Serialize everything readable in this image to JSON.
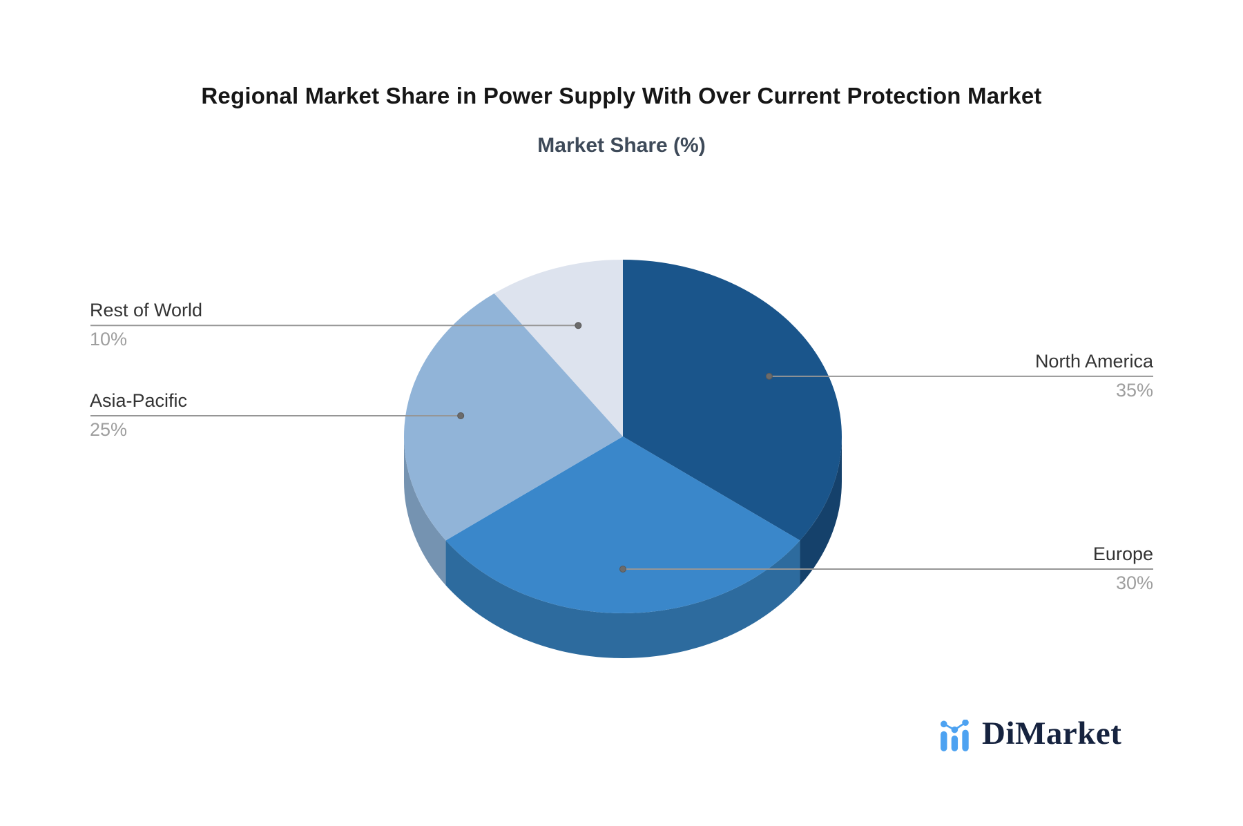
{
  "title": "Regional Market Share in Power Supply With Over Current Protection Market",
  "subtitle": "Market Share (%)",
  "chart_data": {
    "type": "pie",
    "title": "Regional Market Share in Power Supply With Over Current Protection Market",
    "subtitle": "Market Share (%)",
    "unit": "%",
    "effect": "3d",
    "start_angle_deg": 0,
    "direction": "clockwise",
    "legend": "none",
    "slices": [
      {
        "label": "North America",
        "value": 35,
        "display": "35%",
        "color": "#1a558b",
        "side_color": "#15416b",
        "label_side": "right"
      },
      {
        "label": "Europe",
        "value": 30,
        "display": "30%",
        "color": "#3a87ca",
        "side_color": "#2d6b9e",
        "label_side": "right"
      },
      {
        "label": "Asia-Pacific",
        "value": 25,
        "display": "25%",
        "color": "#91b4d8",
        "side_color": "#7593b1",
        "label_side": "left"
      },
      {
        "label": "Rest of World",
        "value": 10,
        "display": "10%",
        "color": "#dde3ee",
        "side_color": "#b6bfcd",
        "label_side": "left"
      }
    ]
  },
  "annotation_colors": {
    "label_text": "#333333",
    "value_text": "#9e9e9e",
    "leader_line": "#969696",
    "leader_dot": "#6b6b6b"
  },
  "logo": {
    "text": "DiMarket",
    "icon": "bar-line-chart-icon",
    "icon_color": "#4da2f1",
    "text_color": "#16233f"
  }
}
